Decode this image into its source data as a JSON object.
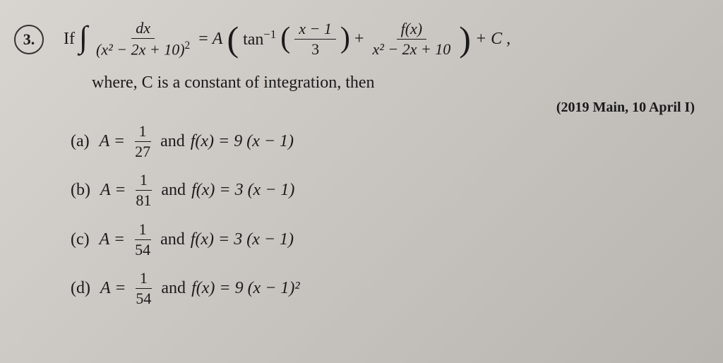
{
  "question": {
    "number": "3.",
    "prefix": "If",
    "integral_symbol": "∫",
    "integrand_num": "dx",
    "integrand_den_base": "(x² − 2x + 10)",
    "integrand_den_exp": "2",
    "equals": " = ",
    "coef": "A",
    "arctan": "tan",
    "arctan_sup": "−1",
    "arctan_arg_num": "x − 1",
    "arctan_arg_den": "3",
    "plus": " + ",
    "frac2_num": "f(x)",
    "frac2_den": "x² − 2x + 10",
    "tail": " + C ,",
    "continuation": "where, C is a constant of integration, then",
    "source": "(2019 Main, 10 April I)"
  },
  "options": {
    "a": {
      "label": "(a)",
      "A_eq": "A =",
      "frac_num": "1",
      "frac_den": "27",
      "and": " and ",
      "fx": "f(x) = 9 (x − 1)"
    },
    "b": {
      "label": "(b)",
      "A_eq": "A =",
      "frac_num": "1",
      "frac_den": "81",
      "and": " and ",
      "fx": "f(x) = 3 (x − 1)"
    },
    "c": {
      "label": "(c)",
      "A_eq": "A =",
      "frac_num": "1",
      "frac_den": "54",
      "and": " and ",
      "fx": "f(x) = 3 (x − 1)"
    },
    "d": {
      "label": "(d)",
      "A_eq": "A =",
      "frac_num": "1",
      "frac_den": "54",
      "and": " and ",
      "fx": "f(x) = 9 (x − 1)²"
    }
  },
  "style": {
    "text_color": "#1a1a1a",
    "bg_light": "#d8d4d0",
    "bg_dark": "#b8b4b0",
    "font_main": "Times New Roman",
    "q_fontsize": 24,
    "opt_fontsize": 24,
    "src_fontsize": 20
  }
}
